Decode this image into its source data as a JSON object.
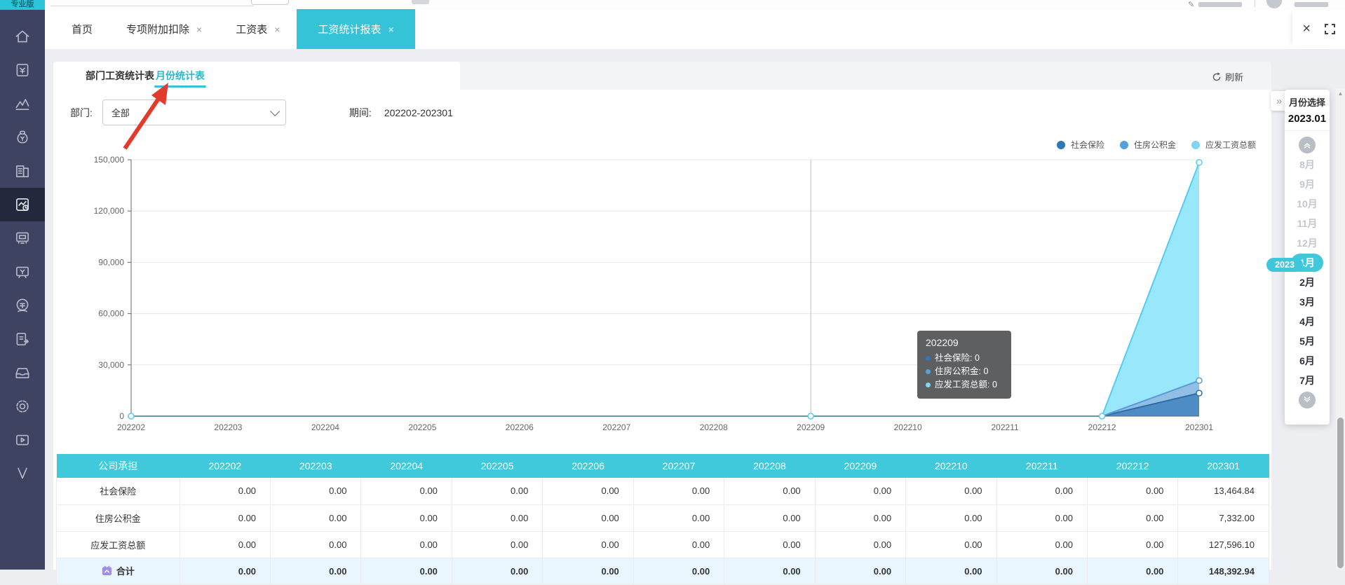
{
  "edition_badge": "专业版",
  "window_controls": {
    "close": "×"
  },
  "tabs": [
    {
      "label": "首页",
      "closable": false,
      "active": false
    },
    {
      "label": "专项附加扣除",
      "closable": true,
      "active": false
    },
    {
      "label": "工资表",
      "closable": true,
      "active": false
    },
    {
      "label": "工资统计报表",
      "closable": true,
      "active": true
    }
  ],
  "sub_tabs": [
    {
      "label": "部门工资统计表",
      "active": false
    },
    {
      "label": "月份统计表",
      "active": true
    }
  ],
  "refresh_label": "刷新",
  "filters": {
    "department_label": "部门:",
    "department_value": "全部",
    "period_label": "期间:",
    "period_value": "202202-202301"
  },
  "legend": [
    {
      "label": "社会保险",
      "color": "#2e78b8"
    },
    {
      "label": "住房公积金",
      "color": "#55a0dd"
    },
    {
      "label": "应发工资总额",
      "color": "#7cd8f2"
    }
  ],
  "chart_data": {
    "type": "area",
    "stacked": true,
    "x": [
      "202202",
      "202203",
      "202204",
      "202205",
      "202206",
      "202207",
      "202208",
      "202209",
      "202210",
      "202211",
      "202212",
      "202301"
    ],
    "series": [
      {
        "name": "社会保险",
        "line": "#2e6ea6",
        "fill": "#4587c0",
        "values": [
          0,
          0,
          0,
          0,
          0,
          0,
          0,
          0,
          0,
          0,
          0,
          13464.84
        ]
      },
      {
        "name": "住房公积金",
        "line": "#5b9bd5",
        "fill": "#8abbe4",
        "values": [
          0,
          0,
          0,
          0,
          0,
          0,
          0,
          0,
          0,
          0,
          0,
          7332.0
        ]
      },
      {
        "name": "应发工资总额",
        "line": "#55cdf0",
        "fill": "#93e6fb",
        "values": [
          0,
          0,
          0,
          0,
          0,
          0,
          0,
          0,
          0,
          0,
          0,
          127596.1
        ]
      }
    ],
    "ylim": [
      0,
      150000
    ],
    "yticks": [
      "0",
      "30,000",
      "60,000",
      "90,000",
      "120,000",
      "150,000"
    ],
    "grid": true,
    "legend_position": "top-right",
    "hover_index": 7
  },
  "tooltip": {
    "title": "202209",
    "items": [
      {
        "label": "社会保险",
        "value": "0",
        "color": "#2e78b8"
      },
      {
        "label": "住房公积金",
        "value": "0",
        "color": "#55a0dd"
      },
      {
        "label": "应发工资总额",
        "value": "0",
        "color": "#7cd8f2"
      }
    ]
  },
  "month_panel": {
    "title": "月份选择",
    "current": "2023.01",
    "year_badge": "2023",
    "months": [
      {
        "label": "8月",
        "state": "disabled"
      },
      {
        "label": "9月",
        "state": "disabled"
      },
      {
        "label": "10月",
        "state": "disabled"
      },
      {
        "label": "11月",
        "state": "disabled"
      },
      {
        "label": "12月",
        "state": "disabled"
      },
      {
        "label": "1月",
        "state": "selected"
      },
      {
        "label": "2月",
        "state": "normal"
      },
      {
        "label": "3月",
        "state": "normal"
      },
      {
        "label": "4月",
        "state": "normal"
      },
      {
        "label": "5月",
        "state": "normal"
      },
      {
        "label": "6月",
        "state": "normal"
      },
      {
        "label": "7月",
        "state": "normal"
      }
    ]
  },
  "table": {
    "columns": [
      "公司承担",
      "202202",
      "202203",
      "202204",
      "202205",
      "202206",
      "202207",
      "202208",
      "202209",
      "202210",
      "202211",
      "202212",
      "202301"
    ],
    "rows": [
      {
        "label": "社会保险",
        "total": false,
        "values": [
          "0.00",
          "0.00",
          "0.00",
          "0.00",
          "0.00",
          "0.00",
          "0.00",
          "0.00",
          "0.00",
          "0.00",
          "0.00",
          "13,464.84"
        ]
      },
      {
        "label": "住房公积金",
        "total": false,
        "values": [
          "0.00",
          "0.00",
          "0.00",
          "0.00",
          "0.00",
          "0.00",
          "0.00",
          "0.00",
          "0.00",
          "0.00",
          "0.00",
          "7,332.00"
        ]
      },
      {
        "label": "应发工资总额",
        "total": false,
        "values": [
          "0.00",
          "0.00",
          "0.00",
          "0.00",
          "0.00",
          "0.00",
          "0.00",
          "0.00",
          "0.00",
          "0.00",
          "0.00",
          "127,596.10"
        ]
      },
      {
        "label": "合计",
        "total": true,
        "values": [
          "0.00",
          "0.00",
          "0.00",
          "0.00",
          "0.00",
          "0.00",
          "0.00",
          "0.00",
          "0.00",
          "0.00",
          "0.00",
          "148,392.94"
        ]
      }
    ]
  },
  "sidebar_icons": [
    "home",
    "billing",
    "trend-chart",
    "money-bag",
    "invoice",
    "statistics",
    "cashier",
    "fixed-assets",
    "tax-seal",
    "voucher-transfer",
    "inbox",
    "settings",
    "video-guide",
    "v-mark"
  ],
  "sidebar_active_index": 5
}
